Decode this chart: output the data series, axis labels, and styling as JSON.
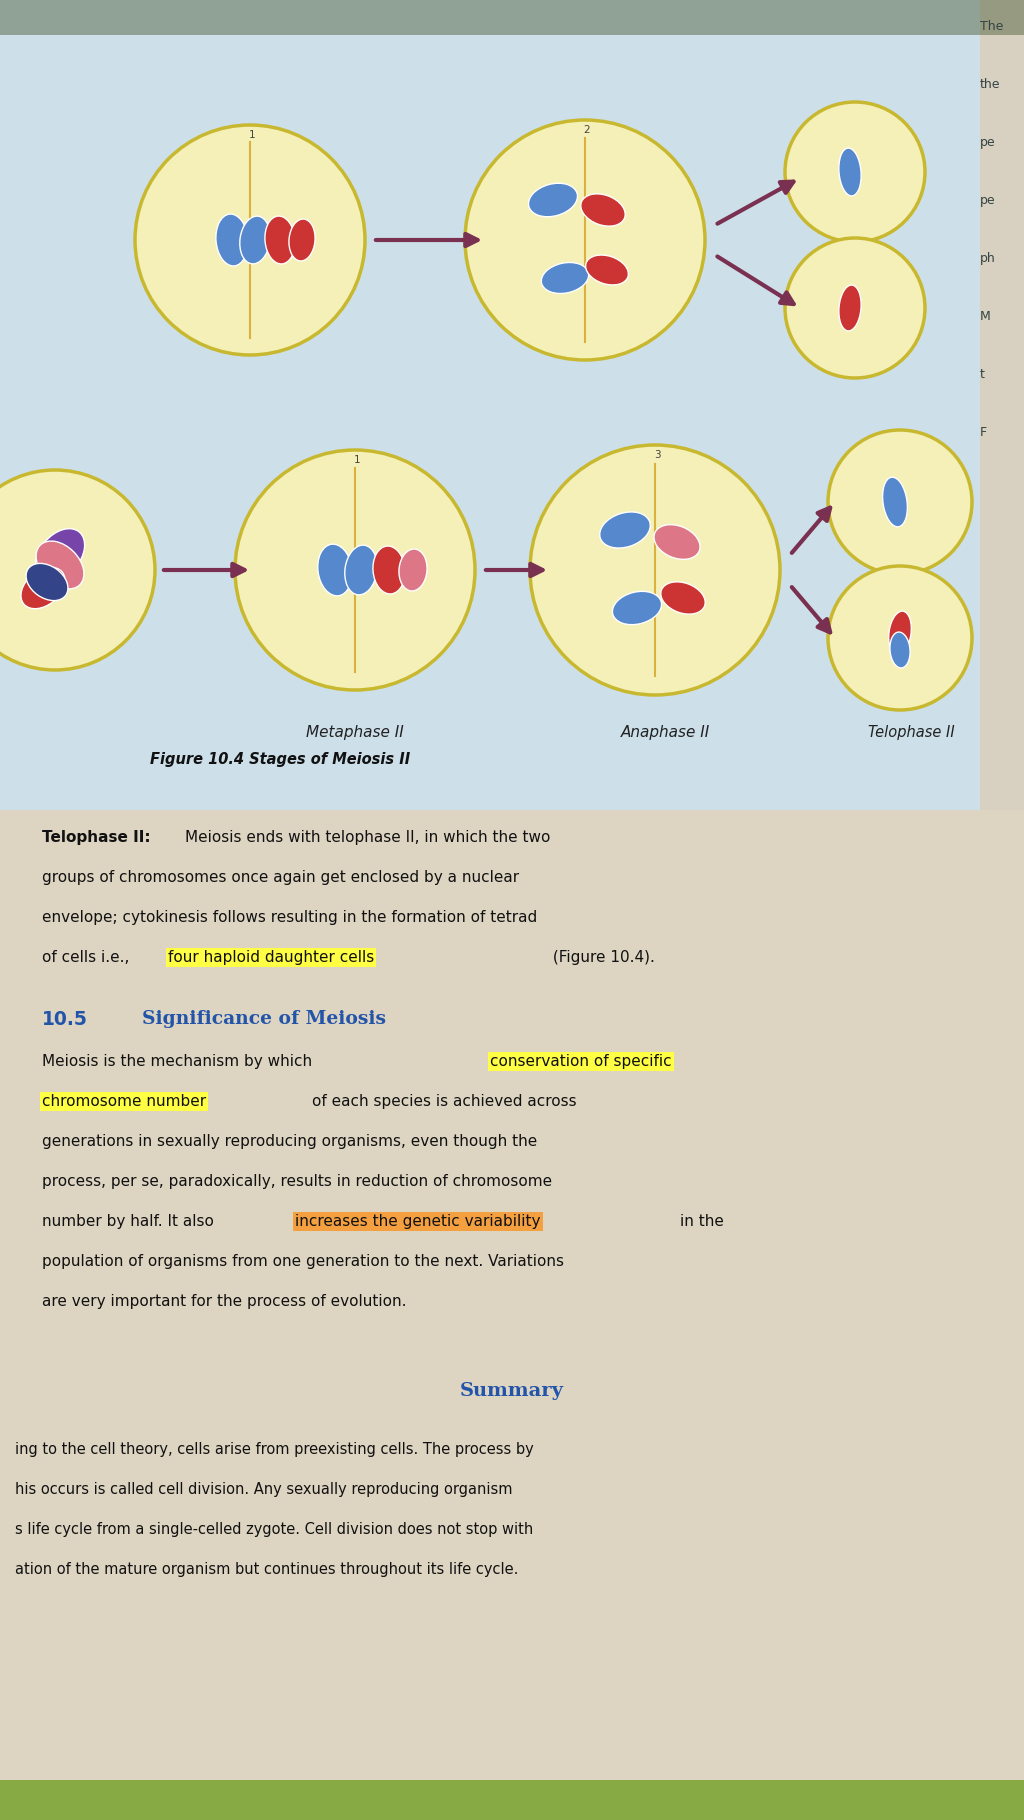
{
  "bg_color": "#cde0ea",
  "page_bg_top": "#d8d0c0",
  "page_bg_bottom": "#ddd8cc",
  "cell_bg": "#f5f0b8",
  "cell_outline": "#c8b830",
  "arrow_color": "#7a3050",
  "blue_chr": "#5588cc",
  "red_chr": "#cc3333",
  "pink_chr": "#dd7788",
  "purple_chr": "#7744aa",
  "dark_blue_chr": "#334488",
  "label_color": "#222222",
  "fig_caption": "Figure 10.4 Stages of Meiosis II",
  "telo_bold": "Telophase II:",
  "telo_rest": " Meiosis ends with telophase II, in which the two groups of chromosomes once again get enclosed by a nuclear envelope; cytokinesis follows resulting in the formation of tetrad of cells i.e., ",
  "highlight1_text": "four haploid daughter cells",
  "highlight1_color": "#ffff44",
  "highlight1_after": " (Figure 10.4).",
  "sec_num": "10.5",
  "sec_title": "  Significance of Meiosis",
  "sec_color": "#2255aa",
  "para1_pre": "Meiosis is the mechanism by which ",
  "highlight2_text": "conservation of specific chromosome number",
  "highlight2_color": "#ffff44",
  "para1_post": " of each species is achieved across generations in sexually reproducing organisms, even though the process, per se, paradoxically, results in reduction of chromosome number by half. It also ",
  "highlight3_text": "increases the genetic variability",
  "highlight3_color": "#f4a040",
  "para1_end": " in the population of organisms from one generation to the next. Variations are very important for the process of evolution.",
  "summary_title": "Summary",
  "summary_color": "#2255aa",
  "bottom_lines": [
    "ing to the cell theory, cells arise from preexisting cells. The process by",
    "his occurs is called cell division. Any sexually reproducing organism",
    "s life cycle from a single-celled zygote. Cell division does not stop with",
    "ation of the mature organism but continues throughout its life cycle."
  ],
  "right_margin": [
    "The",
    "the",
    "pe",
    "pe",
    "ph",
    "M",
    "t",
    "F"
  ]
}
